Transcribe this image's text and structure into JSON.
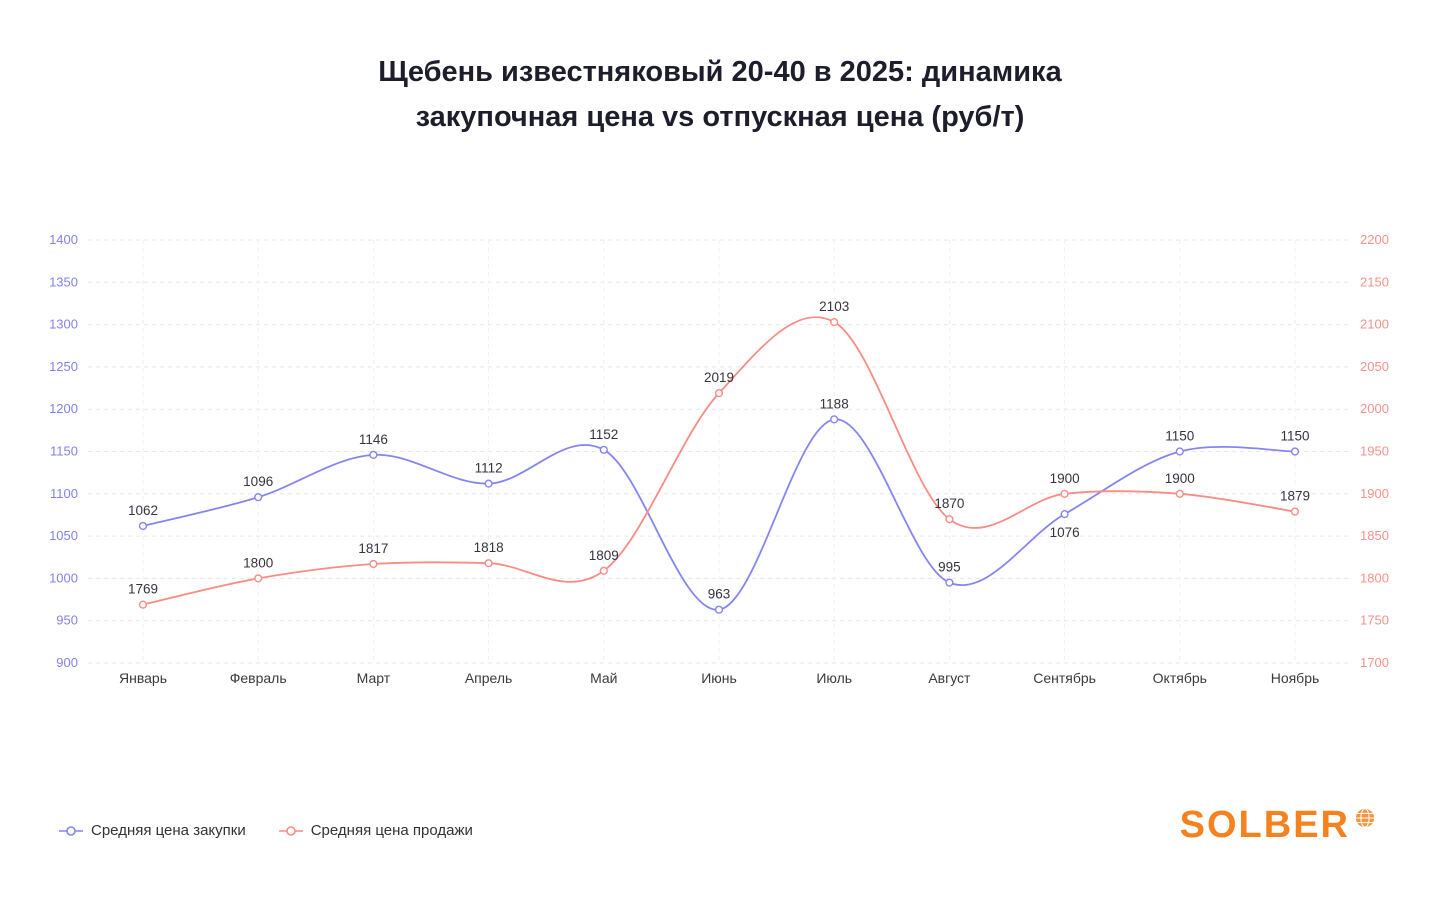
{
  "title": {
    "line1": "Щебень известняковый 20-40 в 2025: динамика",
    "line2": "закупочная цена vs отпускная цена (руб/т)"
  },
  "logo": {
    "text": "SOLBER",
    "color": "#f6821f"
  },
  "chart_data": {
    "type": "line",
    "title": "Щебень известняковый 20-40 в 2025: динамика закупочная цена vs отпускная цена (руб/т)",
    "categories": [
      "Январь",
      "Февраль",
      "Март",
      "Апрель",
      "Май",
      "Июнь",
      "Июль",
      "Август",
      "Сентябрь",
      "Октябрь",
      "Ноябрь"
    ],
    "series": [
      {
        "name": "Средняя цена закупки",
        "axis": "left",
        "color": "#8585f2",
        "values": [
          1062,
          1096,
          1146,
          1112,
          1152,
          963,
          1188,
          995,
          1076,
          1150,
          1150
        ]
      },
      {
        "name": "Средняя цена продажи",
        "axis": "right",
        "color": "#f98c85",
        "values": [
          1769,
          1800,
          1817,
          1818,
          1809,
          2019,
          2103,
          1870,
          1900,
          1900,
          1879
        ]
      }
    ],
    "left_axis": {
      "min": 900,
      "max": 1400,
      "step": 50,
      "color": "#8282ef"
    },
    "right_axis": {
      "min": 1700,
      "max": 2200,
      "step": 50,
      "color": "#fa918a"
    },
    "grid": true,
    "smooth": true,
    "legend_position": "bottom-left",
    "data_label_color": "#35353f",
    "category_label_color": "#3b3b3b",
    "grid_color": "#e6e6ee"
  }
}
